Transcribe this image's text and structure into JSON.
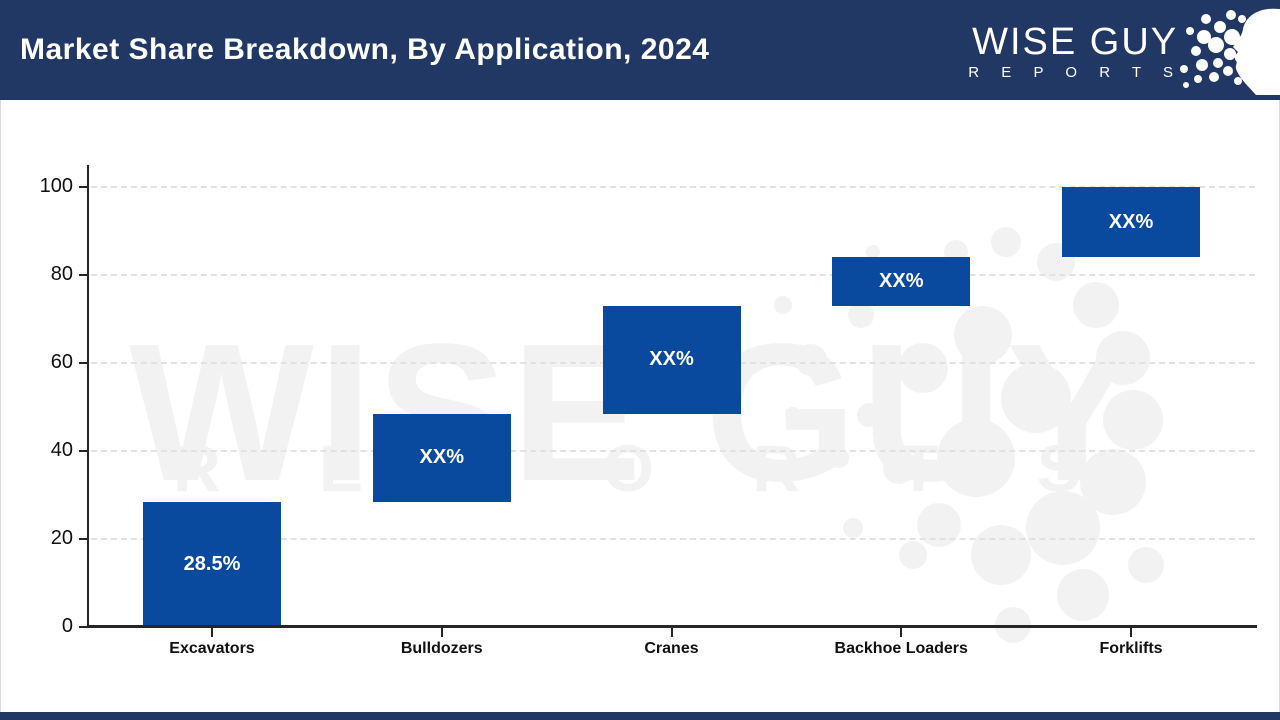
{
  "header": {
    "title": "Market Share Breakdown, By Application, 2024",
    "logo": {
      "line1": "WISE GUY",
      "line2": "R E P O R T S"
    }
  },
  "chart_data": {
    "type": "bar",
    "subtype": "waterfall",
    "title": "Market Share Breakdown, By Application, 2024",
    "categories": [
      "Excavators",
      "Bulldozers",
      "Cranes",
      "Backhoe Loaders",
      "Forklifts"
    ],
    "segments": [
      {
        "category": "Excavators",
        "start": 0,
        "end": 28.5,
        "label": "28.5%"
      },
      {
        "category": "Bulldozers",
        "start": 28.5,
        "end": 48.5,
        "label": "XX%"
      },
      {
        "category": "Cranes",
        "start": 48.5,
        "end": 73,
        "label": "XX%"
      },
      {
        "category": "Backhoe Loaders",
        "start": 73,
        "end": 84,
        "label": "XX%"
      },
      {
        "category": "Forklifts",
        "start": 84,
        "end": 100,
        "label": "XX%"
      }
    ],
    "yticks": [
      0,
      20,
      40,
      60,
      80,
      100
    ],
    "ylim": [
      0,
      105
    ],
    "xlabel": "",
    "ylabel": "",
    "grid": "horizontal-dashed",
    "legend": "none",
    "bar_color": "#0a4a9e",
    "header_color": "#213864",
    "watermark": {
      "line1": "WISE GUY",
      "line2": "R E P O R T S"
    }
  }
}
